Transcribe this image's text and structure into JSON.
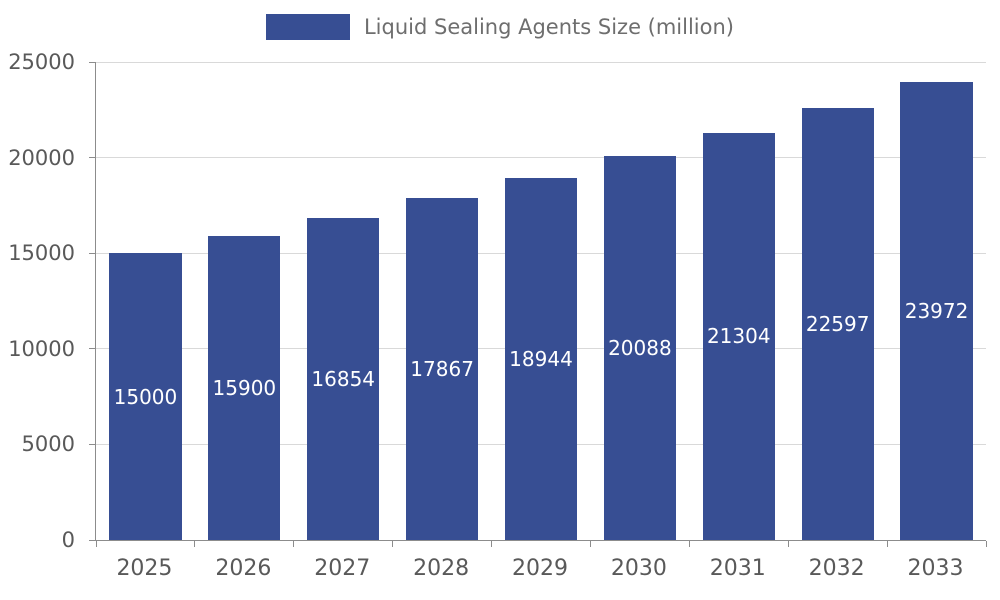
{
  "chart_data": {
    "type": "bar",
    "title": "Liquid Sealing Agents Size (million)",
    "categories": [
      "2025",
      "2026",
      "2027",
      "2028",
      "2029",
      "2030",
      "2031",
      "2032",
      "2033"
    ],
    "values": [
      15000,
      15900,
      16854,
      17867,
      18944,
      20088,
      21304,
      22597,
      23972
    ],
    "value_labels": [
      "15000",
      "15900",
      "16854",
      "17867",
      "18944",
      "20088",
      "21304",
      "22597",
      "23972"
    ],
    "xlabel": "",
    "ylabel": "",
    "ylim": [
      0,
      25000
    ],
    "yticks": [
      0,
      5000,
      10000,
      15000,
      20000,
      25000
    ],
    "ytick_labels": [
      "0",
      "5000",
      "10000",
      "15000",
      "20000",
      "25000"
    ],
    "grid": "horizontal",
    "legend_position": "top-center",
    "colors": {
      "bar": "#374e93",
      "axis_text": "#595959",
      "legend_text": "#6e6e6e",
      "gridline": "#d9d9d9",
      "axis_line": "#8c8c8c",
      "bar_value_text": "#ffffff",
      "background": "#ffffff"
    }
  }
}
